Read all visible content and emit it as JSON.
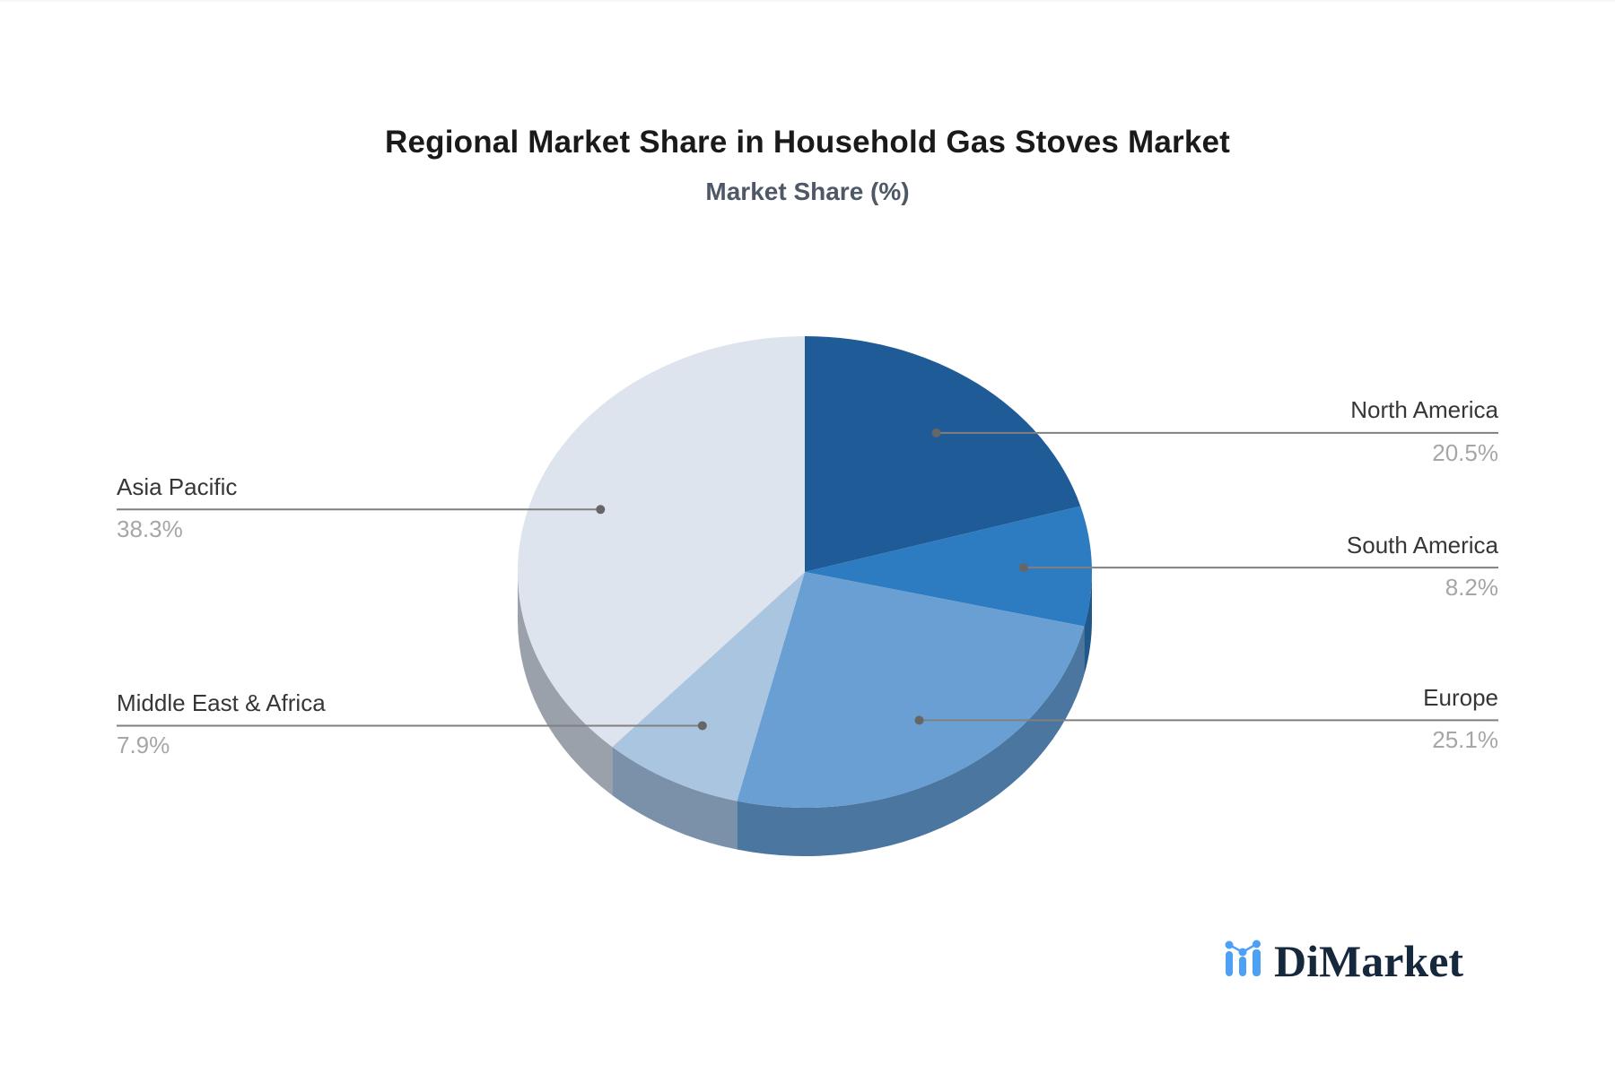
{
  "header": {
    "title": "Regional Market Share in Household Gas Stoves Market",
    "subtitle": "Market Share (%)"
  },
  "chart_data": {
    "type": "pie",
    "title": "Regional Market Share in Household Gas Stoves Market",
    "subtitle": "Market Share (%)",
    "unit": "%",
    "direction": "clockwise",
    "start_angle_deg": 0,
    "effect_3d": true,
    "legend_position": "none",
    "segments": [
      {
        "label": "North America",
        "value": 20.5,
        "display": "20.5%",
        "color": "#1f5c97",
        "side_color": "#164569",
        "label_side": "right"
      },
      {
        "label": "South America",
        "value": 8.2,
        "display": "8.2%",
        "color": "#2d7bc0",
        "side_color": "#21588a",
        "label_side": "right"
      },
      {
        "label": "Europe",
        "value": 25.1,
        "display": "25.1%",
        "color": "#699fd2",
        "side_color": "#4a76a0",
        "label_side": "right"
      },
      {
        "label": "Middle East & Africa",
        "value": 7.9,
        "display": "7.9%",
        "color": "#aac5e0",
        "side_color": "#7b91a9",
        "label_side": "left"
      },
      {
        "label": "Asia Pacific",
        "value": 38.3,
        "display": "38.3%",
        "color": "#dde4ee",
        "side_color": "#9aa1ab",
        "label_side": "left"
      }
    ],
    "label_style": {
      "name_color": "#363636",
      "value_color": "#a6a6a6",
      "line_color": "#808080",
      "dot_color": "#666666"
    }
  },
  "branding": {
    "logo_text": "DiMarket",
    "logo_text_color": "#16283c",
    "logo_accent": "#4da0f4"
  }
}
